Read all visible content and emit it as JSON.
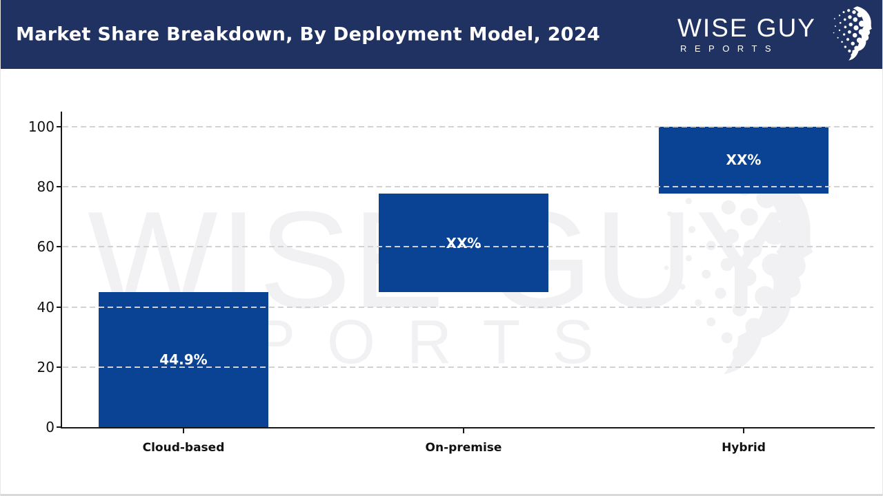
{
  "header": {
    "title": "Market Share Breakdown, By Deployment Model, 2024",
    "bg_color": "#203261",
    "logo": {
      "line1": "WISE GUY",
      "line2": "REPORTS"
    }
  },
  "watermark": {
    "line1": "WISE GUY",
    "line2": "REPORTS"
  },
  "chart_data": {
    "type": "bar",
    "subtype": "stacked-waterfall-segments",
    "title": "Market Share Breakdown, By Deployment Model, 2024",
    "categories": [
      "Cloud-based",
      "On-premise",
      "Hybrid"
    ],
    "series": [
      {
        "name": "Market share (%)",
        "segments": [
          {
            "category": "Cloud-based",
            "start": 0,
            "end": 44.9,
            "value": 44.9,
            "label": "44.9%"
          },
          {
            "category": "On-premise",
            "start": 44.9,
            "end": 77.8,
            "value": 32.9,
            "label": "XX%"
          },
          {
            "category": "Hybrid",
            "start": 77.8,
            "end": 100,
            "value": 22.2,
            "label": "XX%"
          }
        ]
      }
    ],
    "xlabel": "",
    "ylabel": "",
    "ylim": [
      0,
      100
    ],
    "yticks": [
      0,
      20,
      40,
      60,
      80,
      100
    ],
    "grid": "dashed-horizontal",
    "legend": "none",
    "bar_color": "#0a4394",
    "label_color": "#ffffff",
    "axis_color": "#161616",
    "grid_color": "#d2d2d2"
  }
}
